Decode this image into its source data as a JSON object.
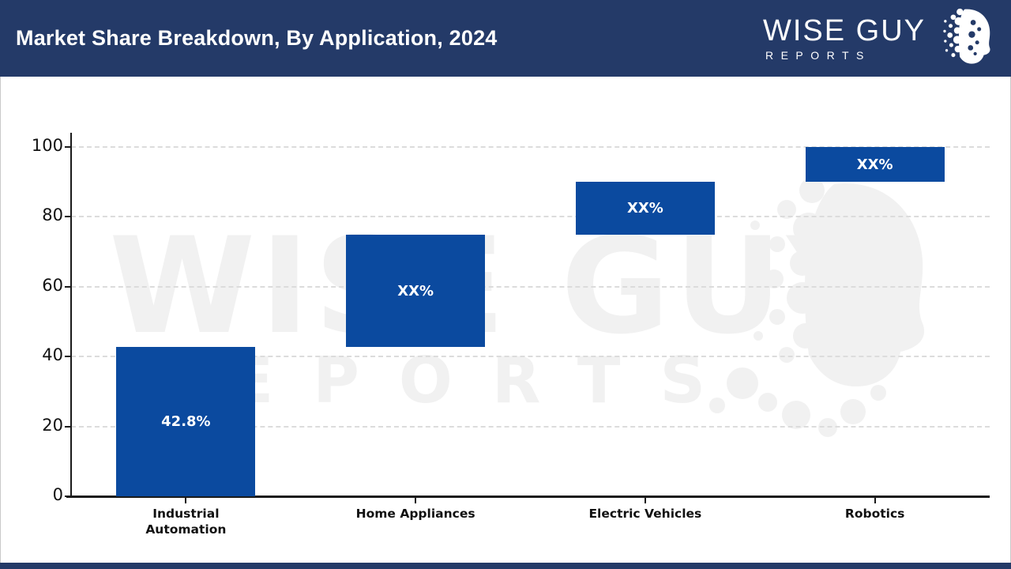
{
  "header": {
    "title": "Market Share Breakdown, By Application, 2024",
    "logo": {
      "line1": "WISE GUY",
      "line2": "REPORTS"
    }
  },
  "watermark": {
    "line1": "WISE GUY",
    "line2": "REPORTS"
  },
  "colors": {
    "header_navy": "#243a68",
    "bar_blue": "#0b4a9f",
    "grid_gray": "#dcdcdc",
    "axis_black": "#1a1a1a",
    "watermark_gray": "#f1f1f1",
    "label_white": "#ffffff"
  },
  "chart_data": {
    "type": "bar",
    "subtype": "stacked-waterfall",
    "title": "Market Share Breakdown, By Application, 2024",
    "xlabel": "",
    "ylabel": "",
    "ylim": [
      0,
      100
    ],
    "yticks": [
      0,
      20,
      40,
      60,
      80,
      100
    ],
    "grid": "horizontal-dashed",
    "legend": "none",
    "categories": [
      "Industrial Automation",
      "Home Appliances",
      "Electric Vehicles",
      "Robotics"
    ],
    "segments": [
      {
        "category": "Industrial Automation",
        "from": 0,
        "to": 42.8,
        "label": "42.8%"
      },
      {
        "category": "Home Appliances",
        "from": 42.8,
        "to": 74.8,
        "label": "XX%"
      },
      {
        "category": "Electric Vehicles",
        "from": 74.8,
        "to": 90,
        "label": "XX%"
      },
      {
        "category": "Robotics",
        "from": 90,
        "to": 100,
        "label": "XX%"
      }
    ]
  }
}
